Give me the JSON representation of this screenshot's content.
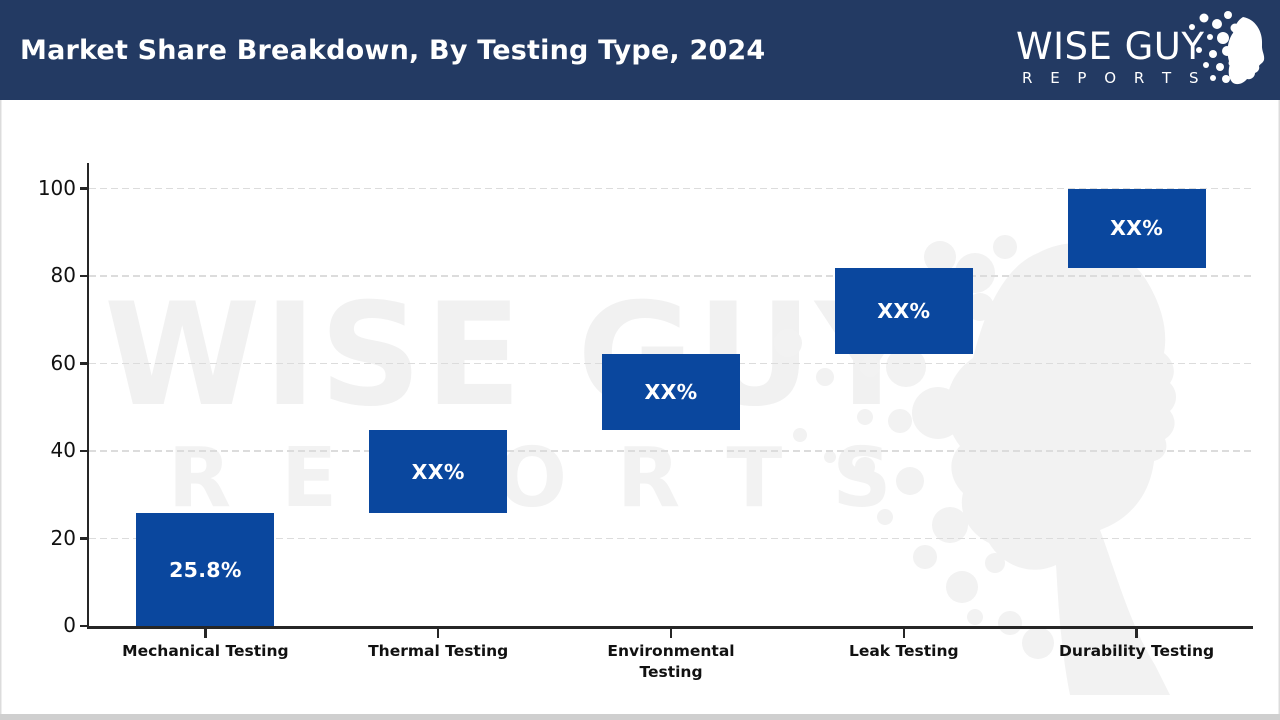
{
  "header": {
    "title": "Market Share Breakdown, By Testing Type, 2024",
    "brand_line1": "WISE GUY",
    "brand_line2": "R E P O R T S"
  },
  "watermark": {
    "line1": "WISE GUY",
    "line2": "REPORTS"
  },
  "colors": {
    "header_bg": "#233a63",
    "bar": "#0a479e",
    "bar_label": "#ffffff",
    "gridline": "#dcdcdc",
    "axis": "#262626",
    "watermark": "#f1f1f1",
    "bottom_strip": "#cfcfcf"
  },
  "chart_data": {
    "type": "bar",
    "subtype": "waterfall",
    "title": "Market Share Breakdown, By Testing Type, 2024",
    "categories": [
      "Mechanical Testing",
      "Thermal Testing",
      "Environmental Testing",
      "Leak Testing",
      "Durability Testing"
    ],
    "segments": [
      {
        "category": "Mechanical Testing",
        "start": 0,
        "end": 25.8,
        "label": "25.8%"
      },
      {
        "category": "Thermal Testing",
        "start": 25.8,
        "end": 44.8,
        "label": "XX%"
      },
      {
        "category": "Environmental Testing",
        "start": 44.8,
        "end": 62.1,
        "label": "XX%"
      },
      {
        "category": "Leak Testing",
        "start": 62.1,
        "end": 81.8,
        "label": "XX%"
      },
      {
        "category": "Durability Testing",
        "start": 81.8,
        "end": 100,
        "label": "XX%"
      }
    ],
    "ylim": [
      0,
      100
    ],
    "yticks": [
      0,
      20,
      40,
      60,
      80,
      100
    ],
    "xlabel": "",
    "ylabel": "",
    "grid": "horizontal-dashed",
    "legend": "none"
  }
}
